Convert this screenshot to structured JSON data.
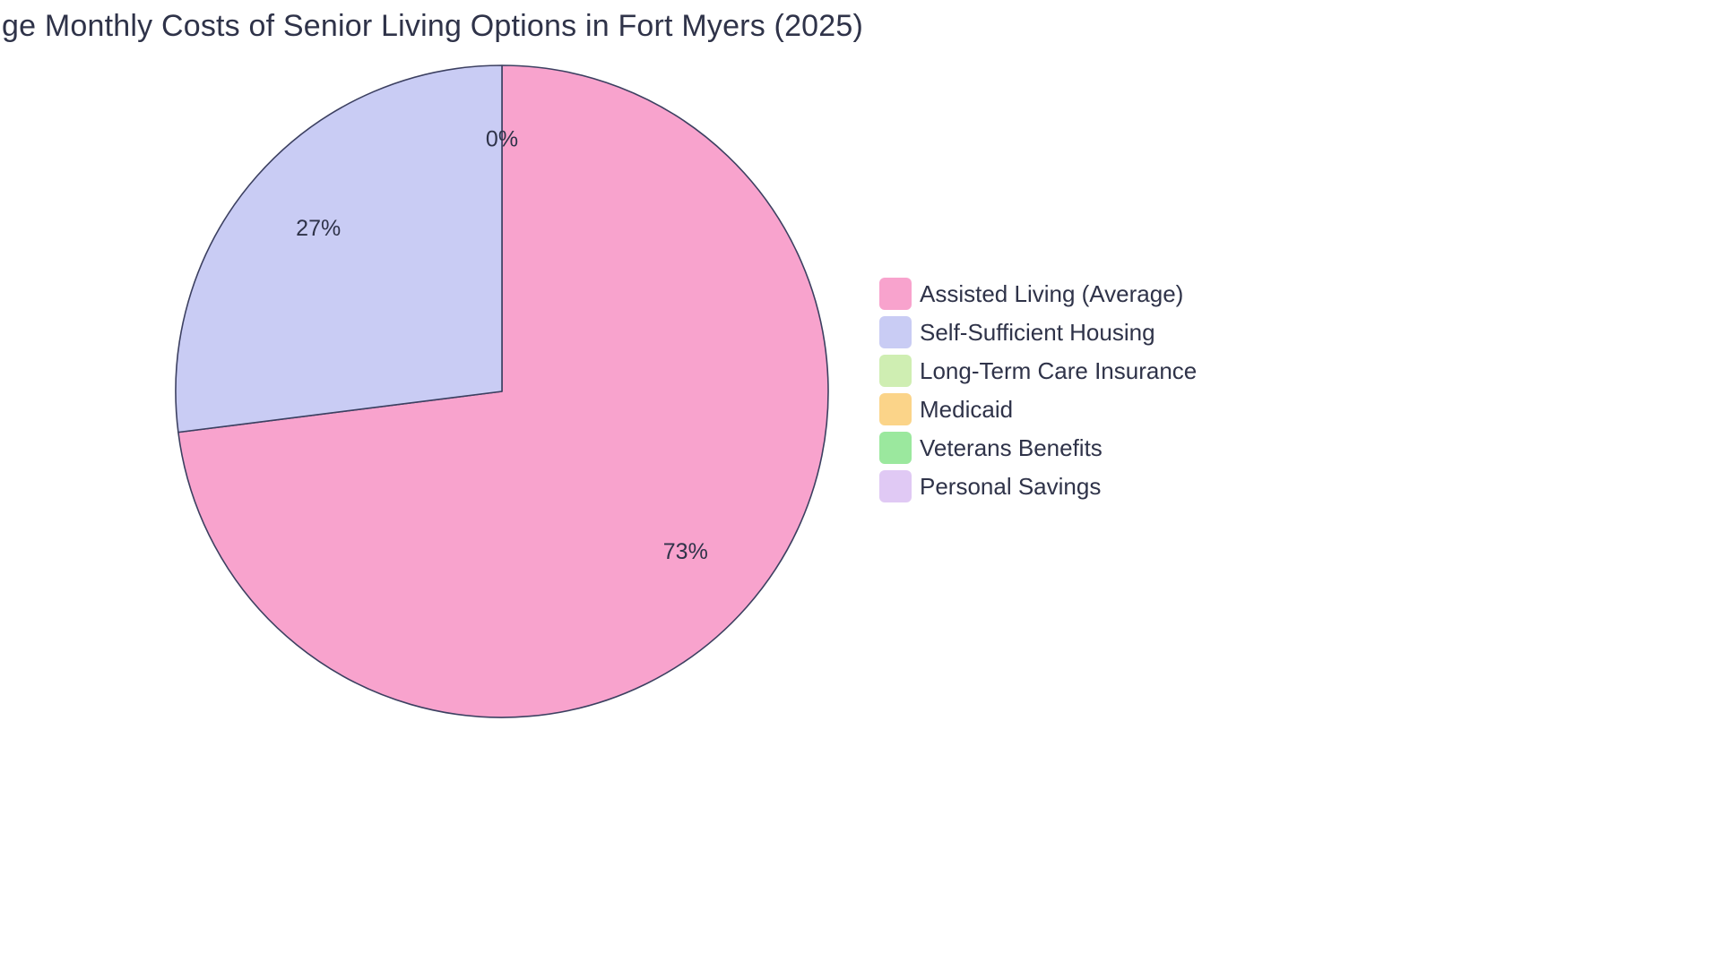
{
  "chart_data": {
    "type": "pie",
    "title": "ge Monthly Costs of Senior Living Options in Fort Myers (2025)",
    "title_color": "#2F3349",
    "labels": [
      "Assisted Living (Average)",
      "Self-Sufficient Housing",
      "Long-Term Care Insurance",
      "Medicaid",
      "Veterans Benefits",
      "Personal Savings"
    ],
    "values": [
      73,
      27,
      0,
      0,
      0,
      0
    ],
    "value_labels": [
      "73%",
      "27%",
      "0%",
      "0%",
      "0%",
      "0%"
    ],
    "colors": [
      "#F8A3CD",
      "#C9CCF4",
      "#CFEEB2",
      "#FBD489",
      "#9BE89E",
      "#E0C9F4"
    ],
    "slice_stroke": "#3C4061",
    "pie_label_color": "#2F3349",
    "start_angle_deg": 0,
    "direction": "clockwise",
    "legend_position": "right",
    "background": "#FFFFFF"
  }
}
